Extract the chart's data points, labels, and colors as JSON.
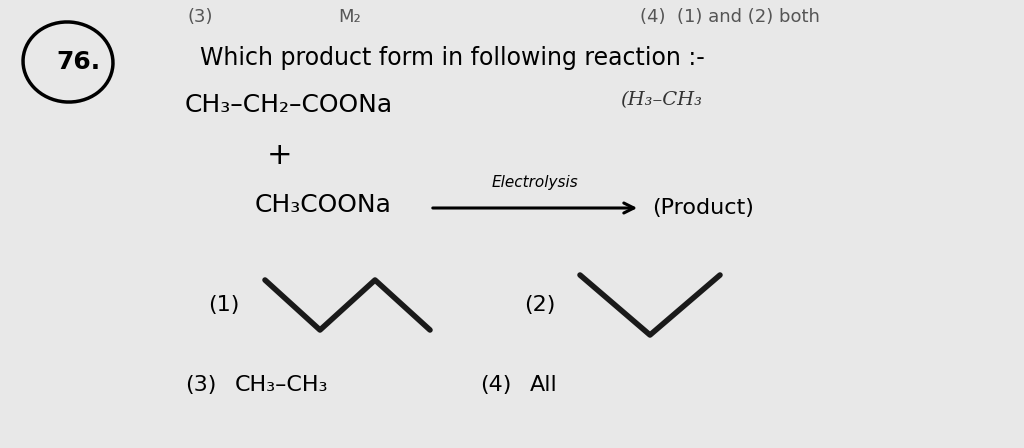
{
  "bg_color": "#e8e8e8",
  "question_number": "76.",
  "question_text": "Which product form in following reaction :-",
  "line1": "CH₃–CH₂–COONa",
  "plus": "+",
  "line2": "CH₃COONa",
  "arrow_label": "Electrolysis",
  "arrow_end": "(Product)",
  "side_note": "(H₃–CH₃",
  "option1_label": "(1)",
  "option2_label": "(2)",
  "option3_label": "(3)",
  "option3_text": "CH₃–CH₃",
  "option4_label": "(4)",
  "option4_text": "All",
  "circle_number": "76.",
  "top_partial_left": "(3)",
  "top_partial_mid": "M₂",
  "top_partial_right": "(4)  (1) and (2) both"
}
